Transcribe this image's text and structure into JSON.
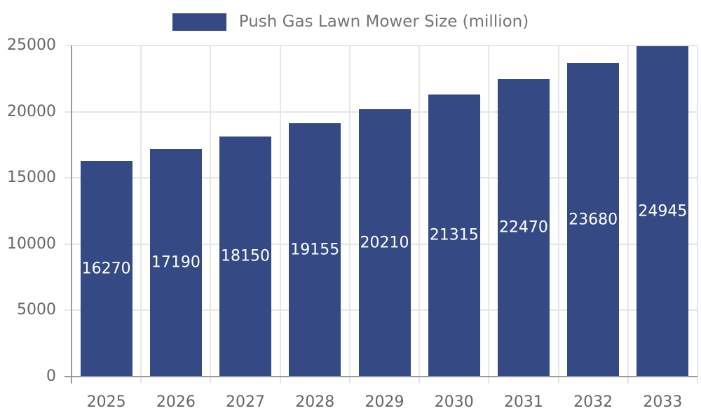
{
  "chart_data": {
    "type": "bar",
    "title": "Push Gas Lawn Mower Size (million)",
    "categories": [
      "2025",
      "2026",
      "2027",
      "2028",
      "2029",
      "2030",
      "2031",
      "2032",
      "2033"
    ],
    "series": [
      {
        "name": "Push Gas Lawn Mower Size (million)",
        "values": [
          16270,
          17190,
          18150,
          19155,
          20210,
          21315,
          22470,
          23680,
          24945
        ]
      }
    ],
    "bar_value_labels": [
      "16270",
      "17190",
      "18150",
      "19155",
      "20210",
      "21315",
      "22470",
      "23680",
      "24945"
    ],
    "xlabel": "",
    "ylabel": "",
    "ylim": [
      0,
      25000
    ],
    "yticks": [
      0,
      5000,
      10000,
      15000,
      20000,
      25000
    ],
    "ytick_labels": [
      "0",
      "5000",
      "10000",
      "15000",
      "20000",
      "25000"
    ],
    "grid": true,
    "legend_position": "top-center",
    "value_label_position": "inside-center",
    "colors": {
      "bar": "#354a85",
      "value_label": "#ffffff",
      "axis_label": "#666666",
      "legend_text": "#757575",
      "gridline": "#e6e6e6",
      "axis_line": "#9b9b9b",
      "background": "#ffffff"
    }
  }
}
